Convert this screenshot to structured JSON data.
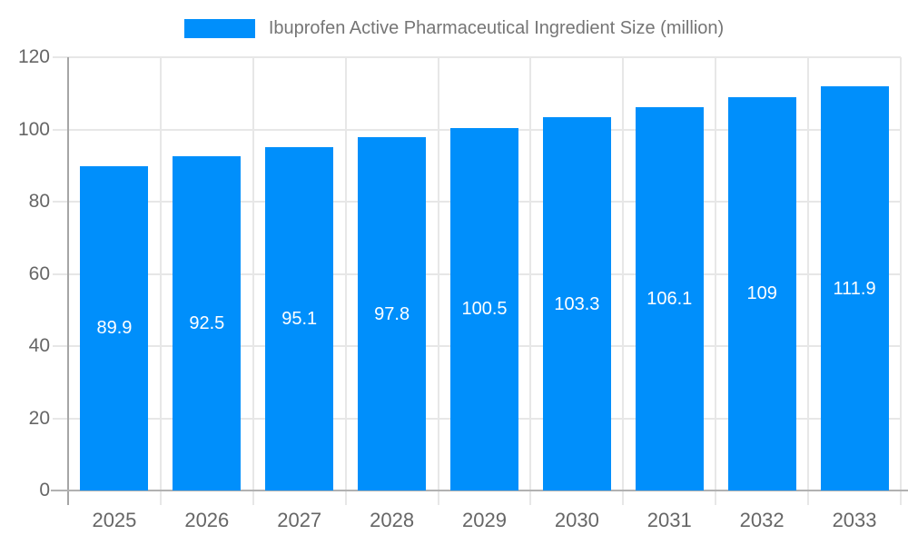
{
  "chart_data": {
    "type": "bar",
    "title": "Ibuprofen Active Pharmaceutical Ingredient Size (million)",
    "categories": [
      "2025",
      "2026",
      "2027",
      "2028",
      "2029",
      "2030",
      "2031",
      "2032",
      "2033"
    ],
    "values": [
      89.9,
      92.5,
      95.1,
      97.8,
      100.5,
      103.3,
      106.1,
      109,
      111.9
    ],
    "value_labels": [
      "89.9",
      "92.5",
      "95.1",
      "97.8",
      "100.5",
      "103.3",
      "106.1",
      "109",
      "111.9"
    ],
    "xlabel": "",
    "ylabel": "",
    "ylim": [
      0,
      120
    ],
    "yticks": [
      0,
      20,
      40,
      60,
      80,
      100,
      120
    ],
    "grid": true,
    "legend_position": "top",
    "colors": {
      "bar": "#008FFB",
      "grid": "#e7e7e7",
      "axis_line": "#a6a6a6",
      "baseline": "#b1b1b1",
      "tick_label": "#666666",
      "legend_text": "#757575",
      "value_label": "#ffffff",
      "background": "#ffffff"
    }
  }
}
